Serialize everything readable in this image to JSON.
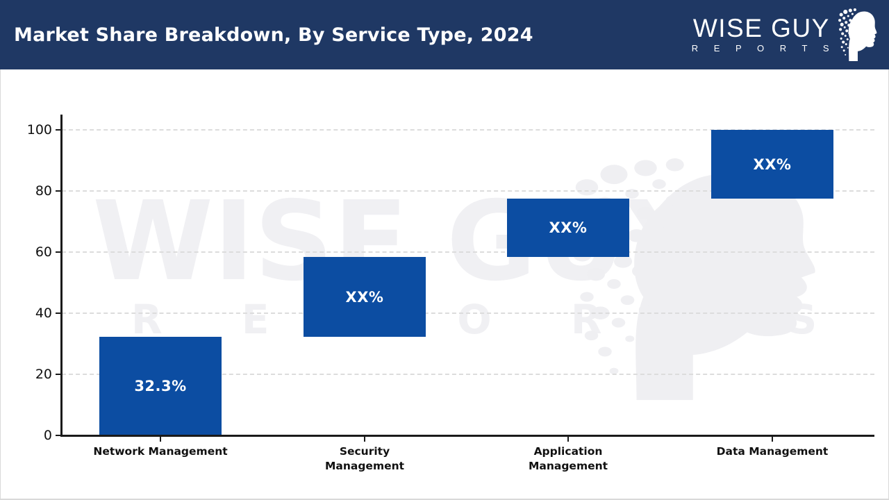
{
  "header": {
    "title": "Market Share Breakdown, By Service Type, 2024",
    "bg_color": "#1f3864",
    "logo": {
      "line1": "WISE GUY",
      "line2": "R E P O R T S"
    }
  },
  "watermark": {
    "line1": "WISE GUY",
    "line2": "R E P O R T S"
  },
  "chart_data": {
    "type": "bar",
    "subtype": "waterfall-stacked-segments",
    "title": "Market Share Breakdown, By Service Type, 2024",
    "categories": [
      "Network Management",
      "Security\nManagement",
      "Application\nManagement",
      "Data Management"
    ],
    "segments": [
      {
        "category": "Network Management",
        "start": 0,
        "end": 32.3,
        "value_label": "32.3%"
      },
      {
        "category": "Security Management",
        "start": 32.3,
        "end": 58.3,
        "value_label": "XX%"
      },
      {
        "category": "Application Management",
        "start": 58.3,
        "end": 77.5,
        "value_label": "XX%"
      },
      {
        "category": "Data Management",
        "start": 77.5,
        "end": 100,
        "value_label": "XX%"
      }
    ],
    "xlabel": "",
    "ylabel": "",
    "ylim": [
      0,
      100
    ],
    "yticks": [
      0,
      20,
      40,
      60,
      80,
      100
    ],
    "grid": "horizontal-dashed",
    "legend": "none",
    "bar_color": "#0c4da2",
    "bar_label_color": "#ffffff",
    "axis_color": "#1a1a1a",
    "grid_color": "#dcdcdc"
  }
}
